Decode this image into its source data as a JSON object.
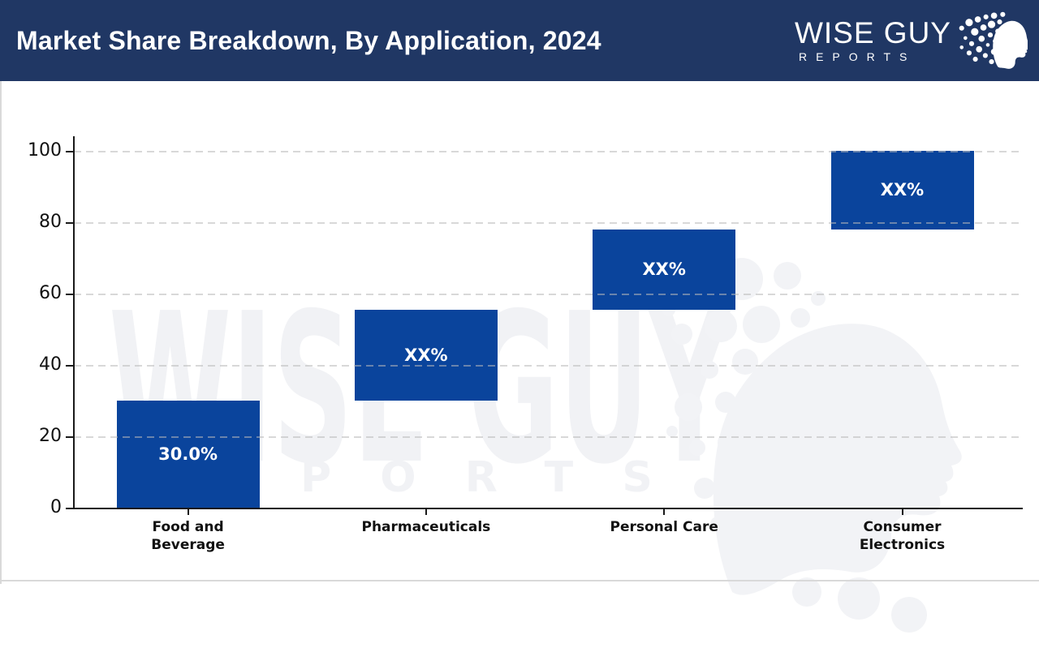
{
  "header": {
    "title": "Market Share Breakdown, By Application, 2024",
    "bg_color": "#203764",
    "logo": {
      "wordmark": "WISE GUY",
      "subtext": "REPORTS"
    }
  },
  "chart_data": {
    "type": "bar",
    "subtype": "floating-waterfall",
    "title": "Market Share Breakdown, By Application, 2024",
    "categories": [
      "Food and Beverage",
      "Pharmaceuticals",
      "Personal Care",
      "Consumer Electronics"
    ],
    "segments": [
      {
        "category": "Food and Beverage",
        "start": 0,
        "end": 30,
        "label": "30.0%"
      },
      {
        "category": "Pharmaceuticals",
        "start": 30,
        "end": 55.5,
        "label": "XX%"
      },
      {
        "category": "Personal Care",
        "start": 55.5,
        "end": 78,
        "label": "XX%"
      },
      {
        "category": "Consumer Electronics",
        "start": 78,
        "end": 100,
        "label": "XX%"
      }
    ],
    "y_ticks": [
      0,
      20,
      40,
      60,
      80,
      100
    ],
    "ylim": [
      0,
      104
    ],
    "xlabel": "",
    "ylabel": "",
    "grid": "horizontal-dashed",
    "legend": "none",
    "bar_color": "#0a449c",
    "bar_label_color": "#ffffff",
    "watermark": {
      "wordmark": "WISE GUY",
      "subtext": "REPORTS"
    }
  }
}
